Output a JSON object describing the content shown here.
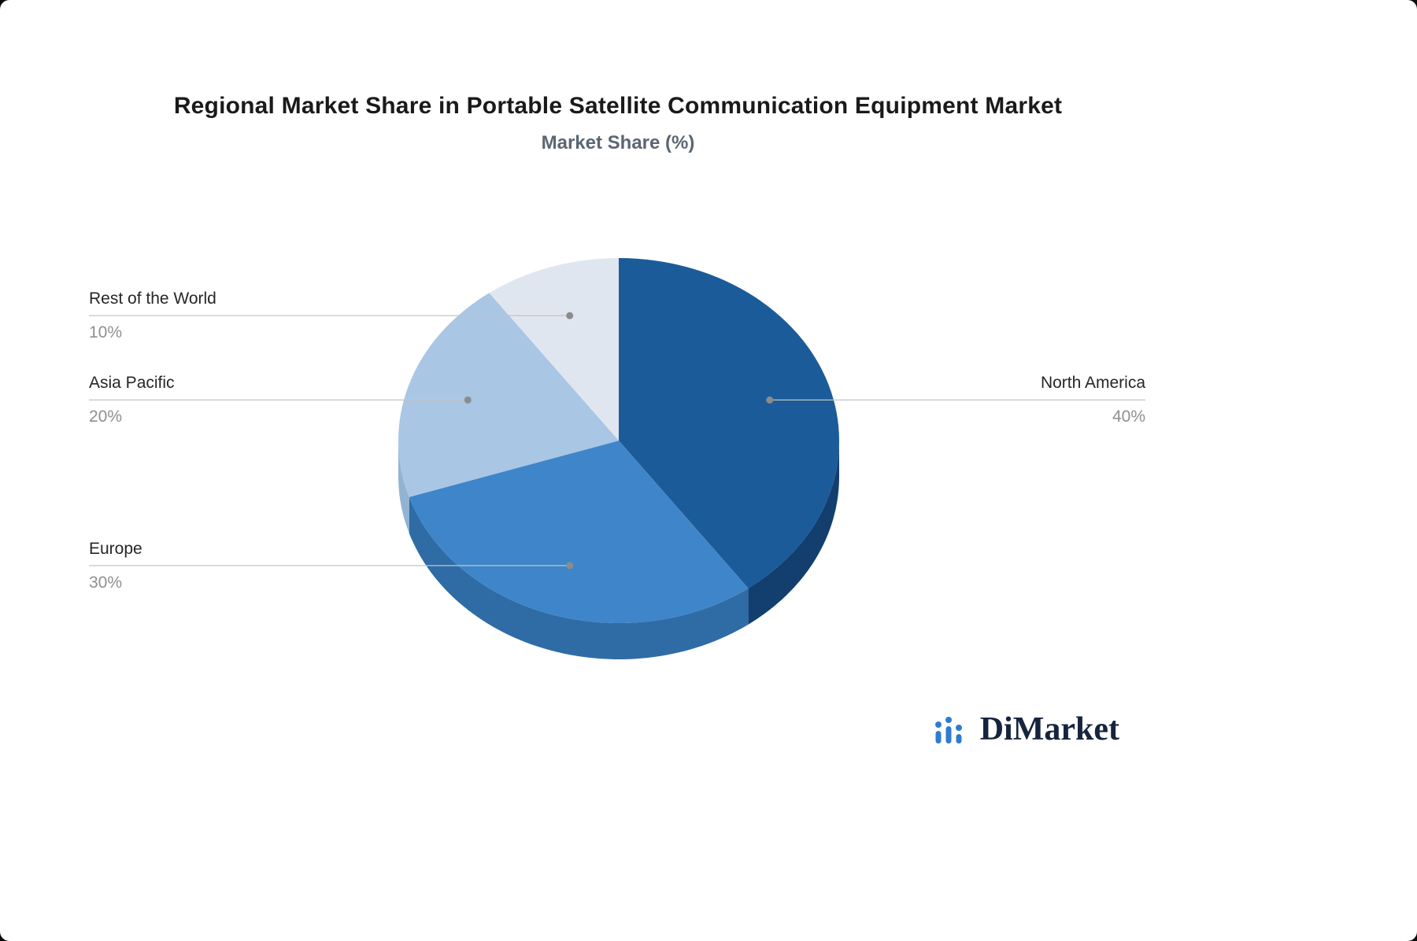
{
  "title": "Regional Market Share in Portable Satellite Communication Equipment Market",
  "subtitle": "Market Share (%)",
  "logo": {
    "text": "DiMarket"
  },
  "chart_data": {
    "type": "pie",
    "title": "Regional Market Share in Portable Satellite Communication Equipment Market",
    "subtitle": "Market Share (%)",
    "unit": "%",
    "start_angle_deg": 90,
    "direction": "clockwise",
    "style": "3d-pie",
    "categories": [
      "North America",
      "Europe",
      "Asia Pacific",
      "Rest of the World"
    ],
    "values": [
      40,
      30,
      20,
      10
    ],
    "slices": [
      {
        "label": "North America",
        "value": 40,
        "display": "40%",
        "color": "#1C5B99",
        "side_color": "#133F6E"
      },
      {
        "label": "Europe",
        "value": 30,
        "display": "30%",
        "color": "#3E86C9",
        "side_color": "#2F6CA6"
      },
      {
        "label": "Asia Pacific",
        "value": 20,
        "display": "20%",
        "color": "#A9C6E4",
        "side_color": "#93B3D3"
      },
      {
        "label": "Rest of the World",
        "value": 10,
        "display": "10%",
        "color": "#E0E6EF",
        "side_color": "#C4CFDE"
      }
    ],
    "legend_position": "none",
    "labels_style": "leader-lines"
  },
  "colors": {
    "leader_line": "#c4c4c4",
    "leader_dot": "#8c8c8c",
    "label_text": "#262626",
    "value_text": "#8f8f8f",
    "logo_blue": "#2e7cd0"
  }
}
